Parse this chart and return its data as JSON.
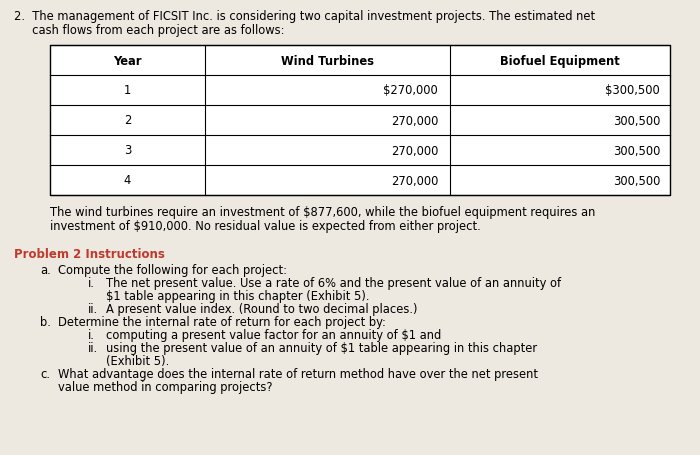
{
  "background_color": "#ede8e0",
  "intro_line1": "2.  The management of FICSIT Inc. is considering two capital investment projects. The estimated net",
  "intro_line2": "     cash flows from each project are as follows:",
  "table_headers": [
    "Year",
    "Wind Turbines",
    "Biofuel Equipment"
  ],
  "table_rows": [
    [
      "1",
      "$270,000",
      "$300,500"
    ],
    [
      "2",
      "270,000",
      "300,500"
    ],
    [
      "3",
      "270,000",
      "300,500"
    ],
    [
      "4",
      "270,000",
      "300,500"
    ]
  ],
  "note_line1": "The wind turbines require an investment of $877,600, while the biofuel equipment requires an",
  "note_line2": "investment of $910,000. No residual value is expected from either project.",
  "section_title": "Problem 2 Instructions",
  "section_title_color": "#c0392b",
  "instr_a_label": "a.",
  "instr_a_text": "Compute the following for each project:",
  "instr_a_i_label": "i.",
  "instr_a_i_line1": "The net present value. Use a rate of 6% and the present value of an annuity of",
  "instr_a_i_line2": "$1 table appearing in this chapter (Exhibit 5).",
  "instr_a_ii_label": "ii.",
  "instr_a_ii_text": "A present value index. (Round to two decimal places.)",
  "instr_b_label": "b.",
  "instr_b_text": "Determine the internal rate of return for each project by:",
  "instr_b_i_label": "i.",
  "instr_b_i_text": "computing a present value factor for an annuity of $1 and",
  "instr_b_ii_label": "ii.",
  "instr_b_ii_line1": "using the present value of an annuity of $1 table appearing in this chapter",
  "instr_b_ii_line2": "(Exhibit 5).",
  "instr_c_label": "c.",
  "instr_c_line1": "What advantage does the internal rate of return method have over the net present",
  "instr_c_line2": "value method in comparing projects?",
  "fs": 8.3,
  "fs_bold": 8.3,
  "fs_section": 8.5
}
